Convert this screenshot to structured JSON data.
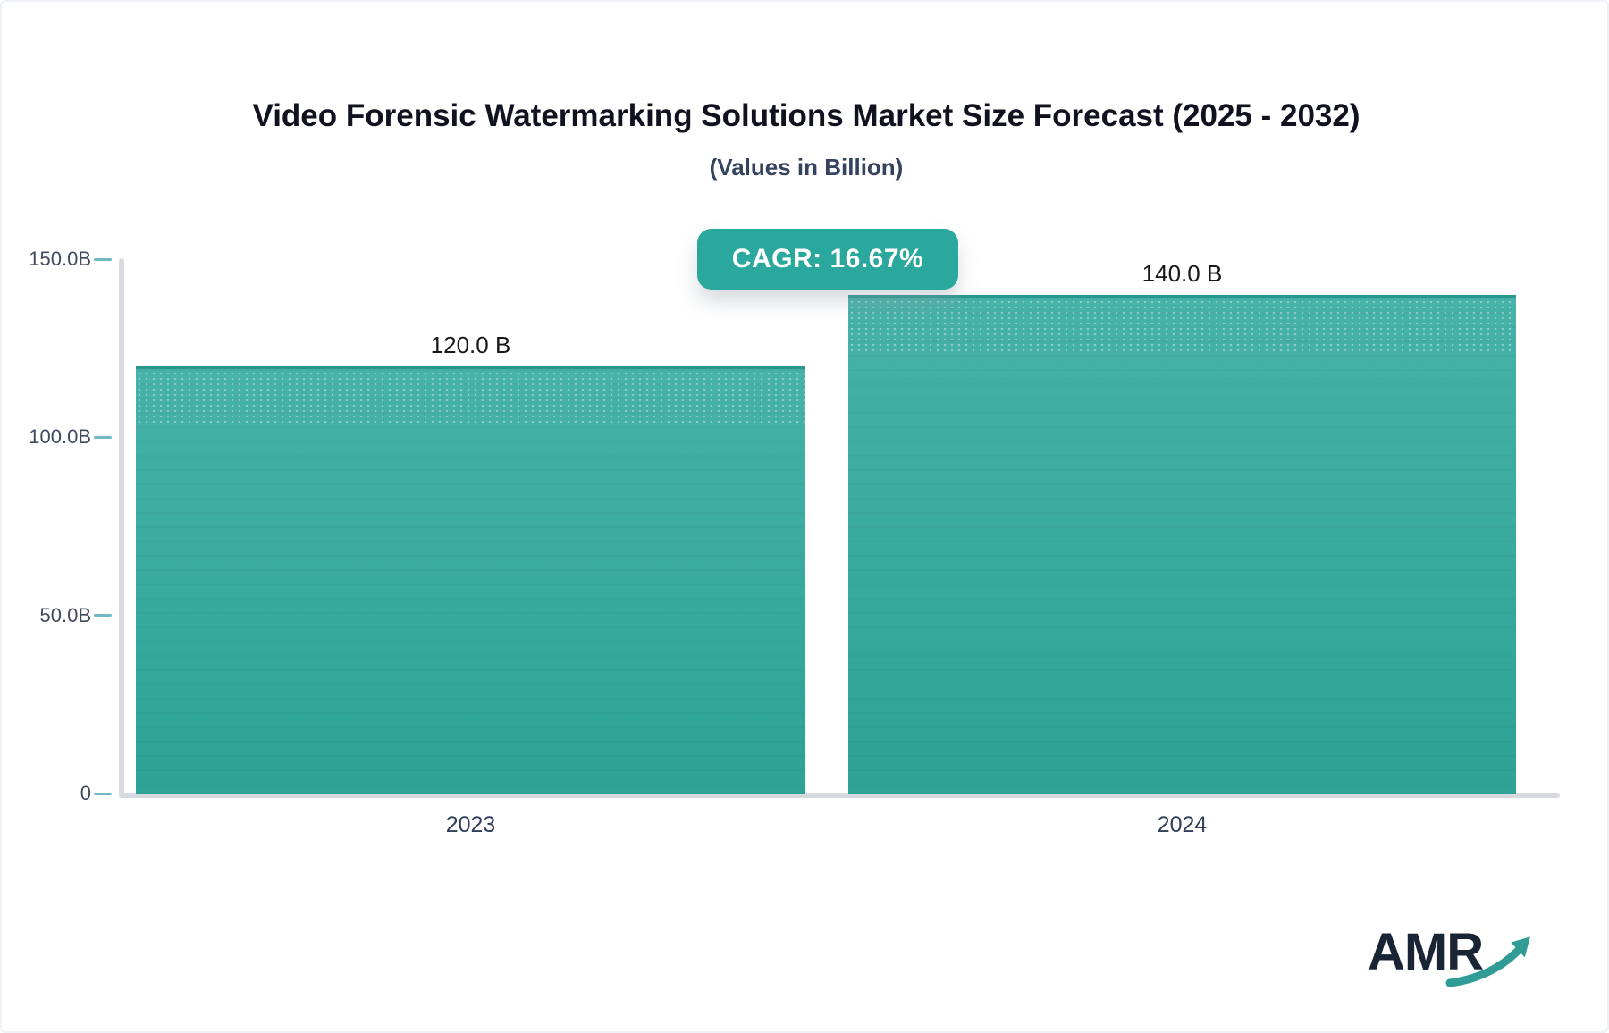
{
  "header": {
    "title": "Video Forensic Watermarking Solutions Market Size Forecast (2025 - 2032)",
    "subtitle": "(Values in Billion)"
  },
  "badge": {
    "label": "CAGR: 16.67%",
    "bg_color": "#2ba89d",
    "text_color": "#ffffff"
  },
  "chart_data": {
    "type": "bar",
    "title": "Video Forensic Watermarking Solutions Market Size Forecast (2025 - 2032)",
    "subtitle": "(Values in Billion)",
    "unit": "Billion",
    "cagr_label": "CAGR: 16.67%",
    "categories": [
      "2023",
      "2024"
    ],
    "values": [
      120.0,
      140.0
    ],
    "bar_labels": [
      "120.0 B",
      "140.0 B"
    ],
    "ylim": [
      0,
      150
    ],
    "yticks": [
      {
        "value": 150,
        "label": "150.0B"
      },
      {
        "value": 100,
        "label": "100.0B"
      },
      {
        "value": 50,
        "label": "50.0B"
      },
      {
        "value": 0,
        "label": "0"
      }
    ],
    "grid": false,
    "legend": false,
    "bar_color_top": "#47b2a8",
    "bar_color_bottom": "#2da295",
    "bar_border_color": "#27978d",
    "axis_color": "#d7dade",
    "tick_color": "#58acba"
  },
  "logo": {
    "text": "AMR",
    "text_color": "#192434",
    "arrow_color": "#2f9d95"
  }
}
